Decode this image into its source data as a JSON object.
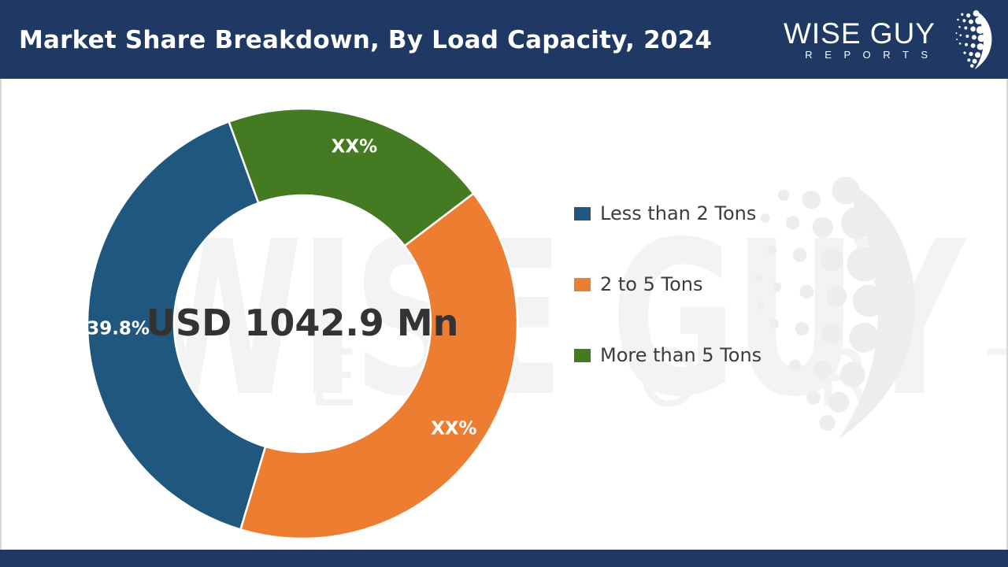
{
  "header": {
    "title": "Market Share Breakdown, By Load Capacity, 2024",
    "bg_color": "#1f3864",
    "logo": {
      "wordmark": "WISE GUY",
      "tagline": "R E P O R T S"
    }
  },
  "watermark": {
    "wordmark": "WISE GUY",
    "tagline": "R E P O R T S"
  },
  "chart_data": {
    "type": "pie",
    "subtype": "donut",
    "title": "Market Share Breakdown, By Load Capacity, 2024",
    "center_label": "USD 1042.9 Mn",
    "categories": [
      "Less than 2 Tons",
      "2 to 5 Tons",
      "More than 5 Tons"
    ],
    "values": [
      39.8,
      40.0,
      20.2
    ],
    "labels": [
      "39.8%",
      "XX%",
      "XX%"
    ],
    "colors": [
      "#20577e",
      "#ed7d31",
      "#447a22"
    ],
    "start_angle": 110,
    "legend_position": "right",
    "label_color": "#ffffff"
  }
}
